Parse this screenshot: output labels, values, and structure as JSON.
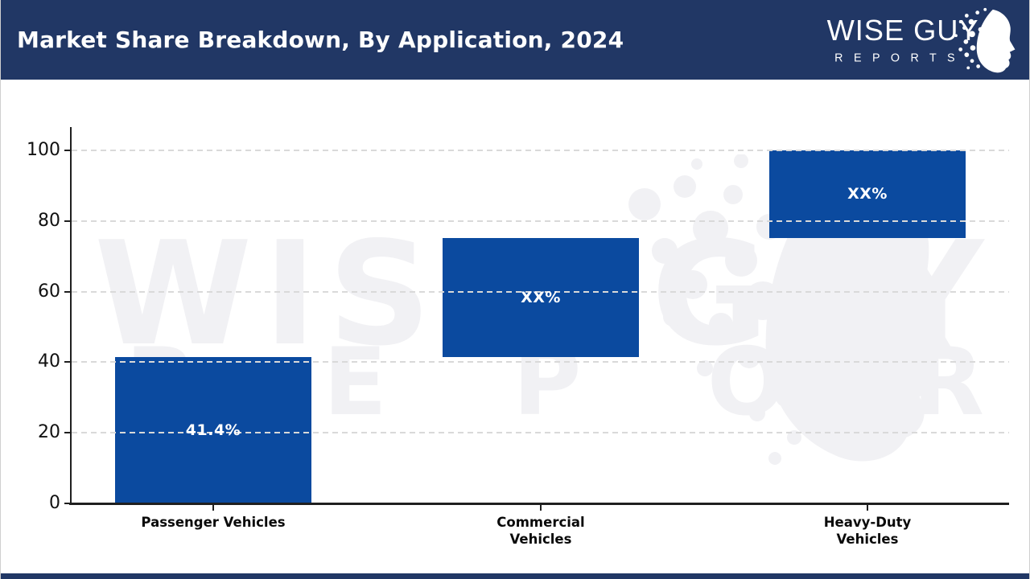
{
  "header": {
    "title": "Market Share Breakdown, By Application, 2024",
    "logo": {
      "primary": "WISE GUY",
      "secondary": "R E P O R T S"
    }
  },
  "watermark": {
    "line1": "WISE G Y",
    "line2": "R E P O R T S"
  },
  "chart_data": {
    "type": "bar",
    "subtype": "stacked-waterfall",
    "title": "Market Share Breakdown, By Application, 2024",
    "categories": [
      "Passenger Vehicles",
      "Commercial Vehicles",
      "Heavy-Duty Vehicles"
    ],
    "bars": [
      {
        "category": "Passenger Vehicles",
        "cat_line1": "Passenger Vehicles",
        "cat_line2": "",
        "label": "41.4%",
        "start": 0,
        "end": 41.4
      },
      {
        "category": "Commercial Vehicles",
        "cat_line1": "Commercial",
        "cat_line2": "Vehicles",
        "label": "XX%",
        "start": 41.4,
        "end": 75.2
      },
      {
        "category": "Heavy-Duty Vehicles",
        "cat_line1": "Heavy-Duty",
        "cat_line2": "Vehicles",
        "label": "XX%",
        "start": 75.2,
        "end": 100
      }
    ],
    "values_shown": [
      "41.4%",
      "XX%",
      "XX%"
    ],
    "ylim": [
      0,
      100
    ],
    "yticks": [
      0,
      20,
      40,
      60,
      80,
      100
    ],
    "ytick_labels": [
      "0",
      "20",
      "40",
      "60",
      "80",
      "100"
    ],
    "xlabel": "",
    "ylabel": "",
    "grid": "horizontal-dashed",
    "legend": "none",
    "bar_color": "#0B4A9F"
  },
  "colors": {
    "header_bg": "#213765",
    "footer_bg": "#213765",
    "bar": "#0B4A9F",
    "gridline": "#D9D9D9",
    "axis": "#1F1F1F",
    "watermark": "#F1F1F4",
    "page_bg": "#FFFFFF",
    "title_text": "#FFFFFF",
    "category_text": "#0A0A0A"
  }
}
